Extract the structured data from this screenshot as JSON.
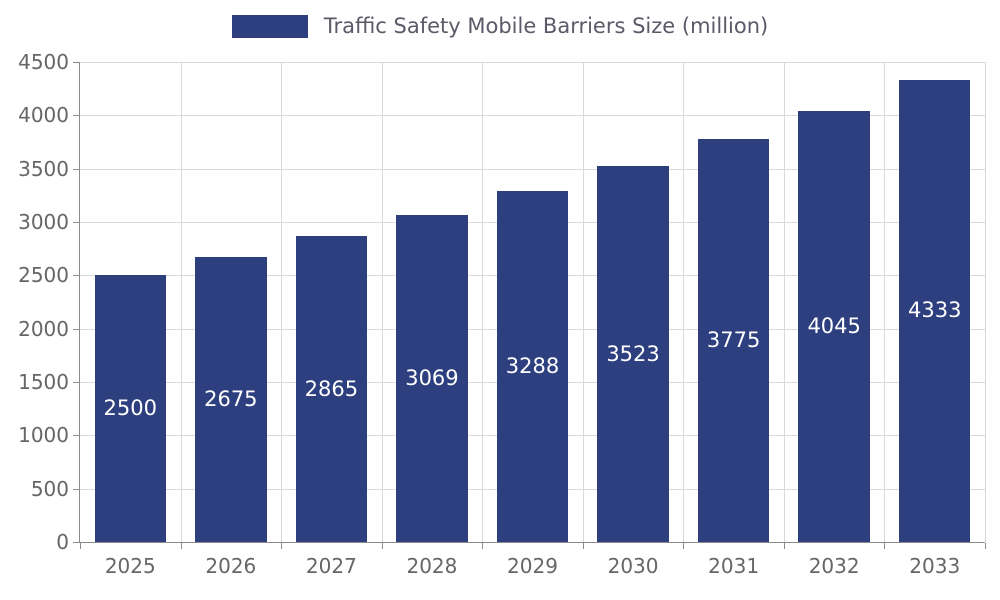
{
  "chart_data": {
    "type": "bar",
    "title": "Traffic Safety Mobile Barriers Size (million)",
    "categories": [
      "2025",
      "2026",
      "2027",
      "2028",
      "2029",
      "2030",
      "2031",
      "2032",
      "2033"
    ],
    "values": [
      2500,
      2675,
      2865,
      3069,
      3288,
      3523,
      3775,
      4045,
      4333
    ],
    "series": [
      {
        "name": "Traffic Safety Mobile Barriers Size (million)",
        "values": [
          2500,
          2675,
          2865,
          3069,
          3288,
          3523,
          3775,
          4045,
          4333
        ]
      }
    ],
    "xlabel": "",
    "ylabel": "",
    "ylim": [
      0,
      4500
    ],
    "ytick_step": 500,
    "yticks": [
      0,
      500,
      1000,
      1500,
      2000,
      2500,
      3000,
      3500,
      4000,
      4500
    ],
    "grid": true,
    "legend_position": "top-center",
    "value_labels": "inside-middle",
    "bar_color": "#2e3f7f",
    "value_label_color": "#ffffff",
    "axis_color": "#8a8a8a",
    "grid_color": "#d9d9d9",
    "tick_label_color": "#666666",
    "title_color": "#5a5a68"
  }
}
